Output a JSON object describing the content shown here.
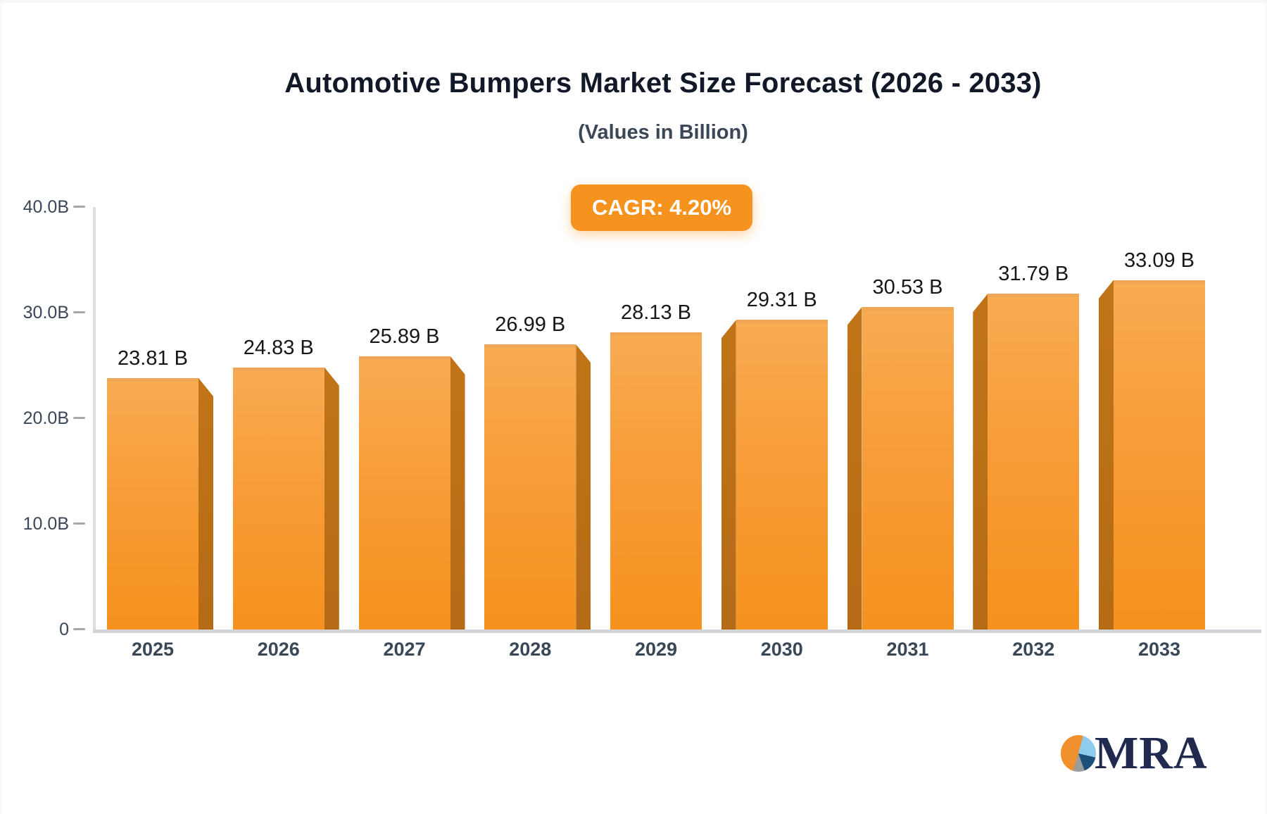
{
  "header": {
    "title": "Automotive Bumpers Market Size Forecast (2026 - 2033)",
    "subtitle": "(Values in Billion)"
  },
  "badge": {
    "label": "CAGR: 4.20%"
  },
  "chart_data": {
    "type": "bar",
    "title": "Automotive Bumpers Market Size Forecast (2026 - 2033)",
    "subtitle": "(Values in Billion)",
    "cagr_label": "CAGR: 4.20%",
    "categories": [
      "2025",
      "2026",
      "2027",
      "2028",
      "2029",
      "2030",
      "2031",
      "2032",
      "2033"
    ],
    "values": [
      23.81,
      24.83,
      25.89,
      26.99,
      28.13,
      29.31,
      30.53,
      31.79,
      33.09
    ],
    "labels": [
      "23.81 B",
      "24.83 B",
      "25.89 B",
      "26.99 B",
      "28.13 B",
      "29.31 B",
      "30.53 B",
      "31.79 B",
      "33.09 B"
    ],
    "xlabel": "",
    "ylabel": "",
    "ylim": [
      0,
      40
    ],
    "yticks": {
      "values": [
        40,
        30,
        20,
        10,
        0
      ],
      "labels": [
        "40.0B",
        "30.0B",
        "20.0B",
        "10.0B",
        "0"
      ]
    },
    "grid": false,
    "legend": false,
    "bar_color": "#f6921e",
    "bar_side_color": "#b96f1b",
    "style": "3d-beveled-bars"
  },
  "logo": {
    "text": "MRA",
    "icon": "pie-chart-icon",
    "icon_colors": {
      "orange": "#f0912d",
      "light_blue": "#8fcbea",
      "dark_blue": "#1d5078",
      "gray": "#9c9c9c"
    }
  }
}
